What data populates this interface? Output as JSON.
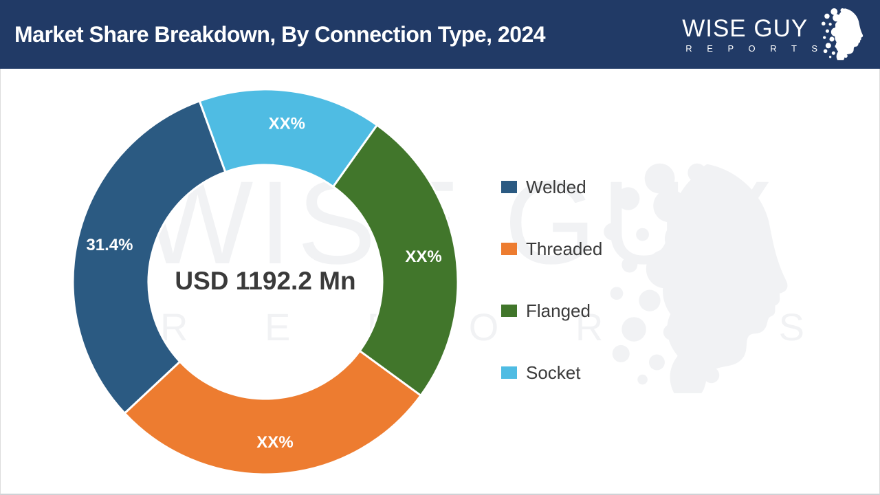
{
  "header": {
    "title": "Market Share Breakdown, By Connection Type, 2024",
    "bg_color": "#213A66",
    "logo": {
      "line1": "WISE GUY",
      "line2": "R E P O R T S"
    }
  },
  "watermark": {
    "line1": "WISE GUY",
    "line2": "R E P O R T S"
  },
  "chart_data": {
    "type": "pie",
    "subtype": "donut",
    "title": "Market Share Breakdown, By Connection Type, 2024",
    "center_label": "USD 1192.2 Mn",
    "start_angle_deg": 110,
    "direction": "counterclockwise",
    "legend_position": "right",
    "slice_label_color": "#ffffff",
    "center_label_color": "#3a3a3a",
    "segments": [
      {
        "label": "Welded",
        "value_pct": 31.4,
        "display": "31.4%",
        "color": "#2B5A82"
      },
      {
        "label": "Threaded",
        "value_pct": 28.0,
        "display": "XX%",
        "color": "#ED7C30"
      },
      {
        "label": "Flanged",
        "value_pct": 25.2,
        "display": "XX%",
        "color": "#41762B"
      },
      {
        "label": "Socket",
        "value_pct": 15.4,
        "display": "XX%",
        "color": "#4FBCE3"
      }
    ]
  }
}
